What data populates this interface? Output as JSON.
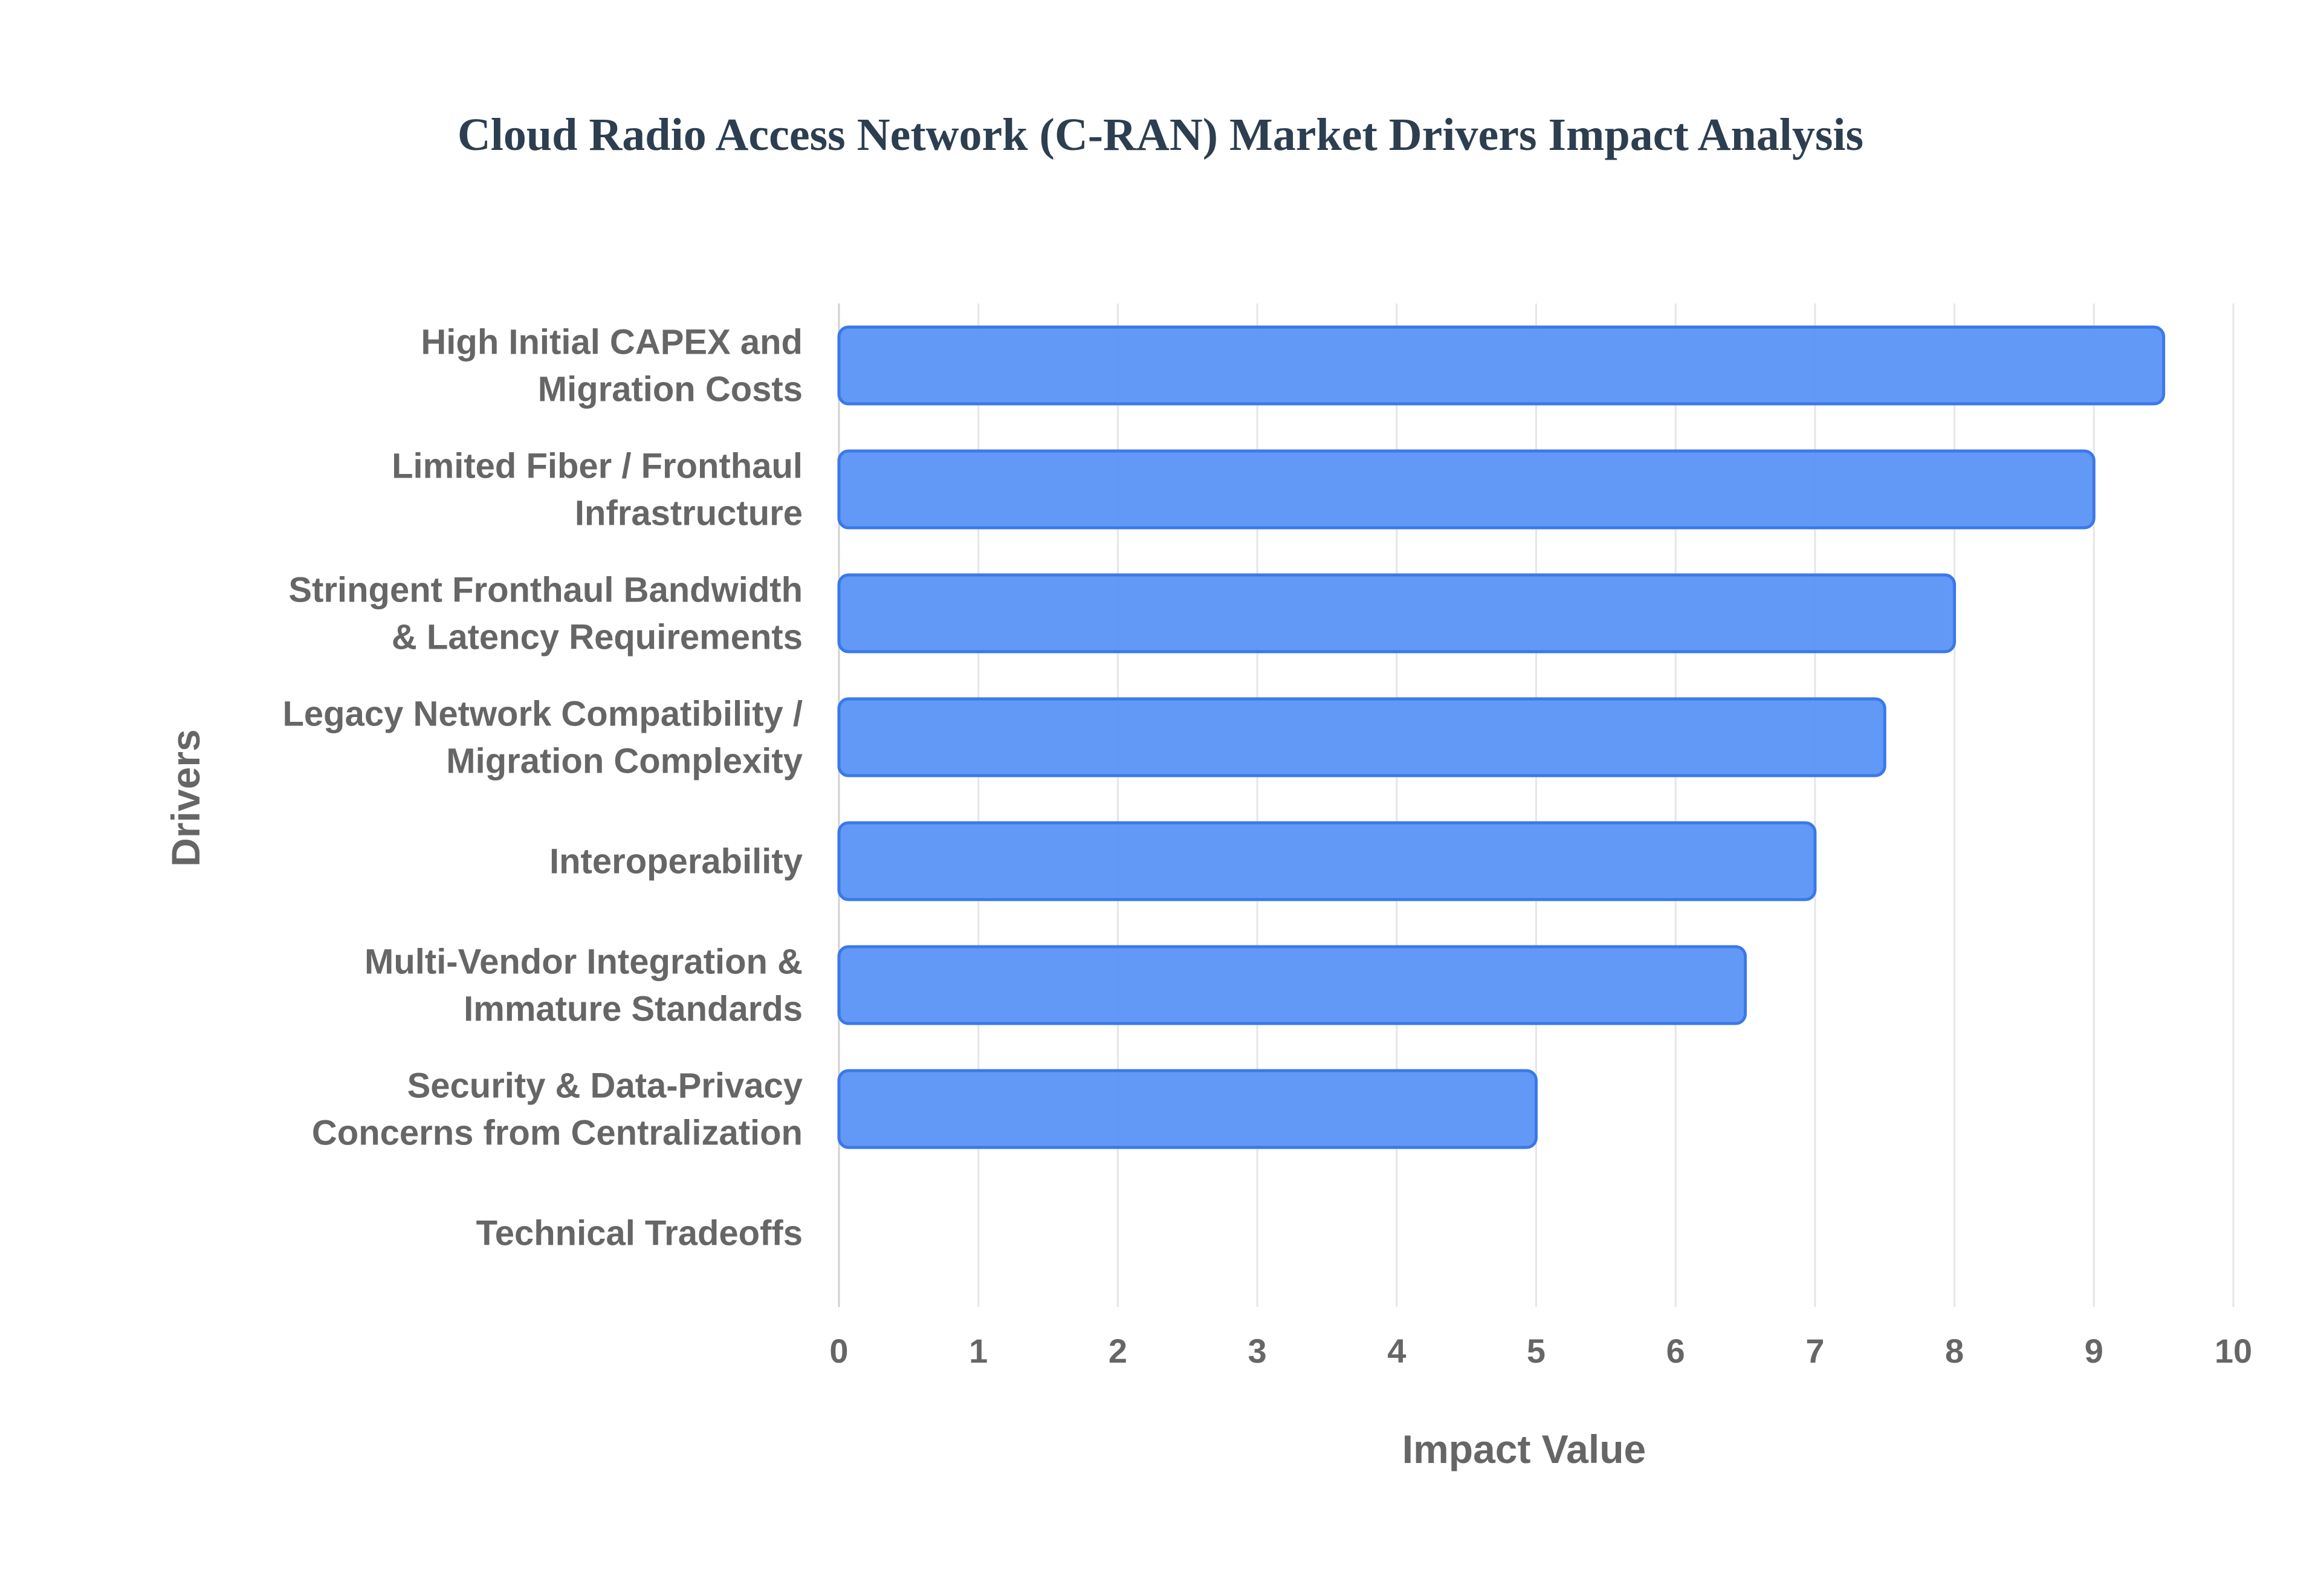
{
  "chart_data": {
    "type": "bar",
    "orientation": "horizontal",
    "title": "Cloud Radio Access Network (C-RAN) Market Drivers Impact Analysis",
    "xlabel": "Impact Value",
    "ylabel": "Drivers",
    "xlim": [
      0,
      10
    ],
    "x_ticks": [
      "0",
      "1",
      "2",
      "3",
      "4",
      "5",
      "6",
      "7",
      "8",
      "9",
      "10"
    ],
    "grid": true,
    "categories": [
      [
        "High Initial CAPEX and",
        "Migration Costs"
      ],
      [
        "Limited Fiber / Fronthaul",
        "Infrastructure"
      ],
      [
        "Stringent Fronthaul Bandwidth",
        "& Latency Requirements"
      ],
      [
        "Legacy Network Compatibility /",
        "Migration Complexity"
      ],
      [
        "Interoperability"
      ],
      [
        "Multi-Vendor Integration &",
        "Immature Standards"
      ],
      [
        "Security & Data-Privacy",
        "Concerns from Centralization"
      ],
      [
        "Technical Tradeoffs"
      ]
    ],
    "values": [
      9.5,
      9.0,
      8.0,
      7.5,
      7.0,
      6.5,
      5.0,
      null
    ],
    "colors": {
      "bar_fill": "#5b93f5",
      "bar_border": "#3b78ea",
      "title": "#2c3e50",
      "text": "#666666"
    }
  }
}
